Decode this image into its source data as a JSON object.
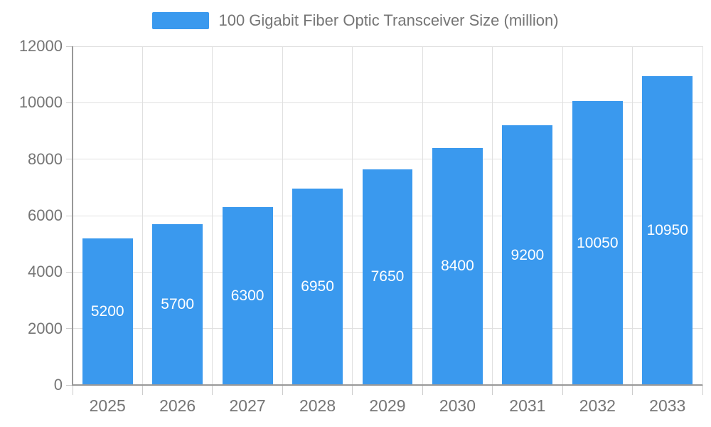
{
  "legend": {
    "label": "100 Gigabit Fiber Optic Transceiver Size (million)"
  },
  "chart_data": {
    "type": "bar",
    "title": "100 Gigabit Fiber Optic Transceiver Size (million)",
    "categories": [
      "2025",
      "2026",
      "2027",
      "2028",
      "2029",
      "2030",
      "2031",
      "2032",
      "2033"
    ],
    "values": [
      5200,
      5700,
      6300,
      6950,
      7650,
      8400,
      9200,
      10050,
      10950
    ],
    "xlabel": "",
    "ylabel": "",
    "ylim": [
      0,
      12000
    ],
    "ytick_step": 2000,
    "grid": true,
    "legend_position": "top-center",
    "bar_labels": "inside-center-white",
    "colors": {
      "bar": "#3A99EE",
      "grid_line": "#e0e0e0",
      "axis_line": "#999999",
      "tick": "#cccccc",
      "axis_text": "#757575",
      "bar_label_text": "#ffffff"
    }
  }
}
